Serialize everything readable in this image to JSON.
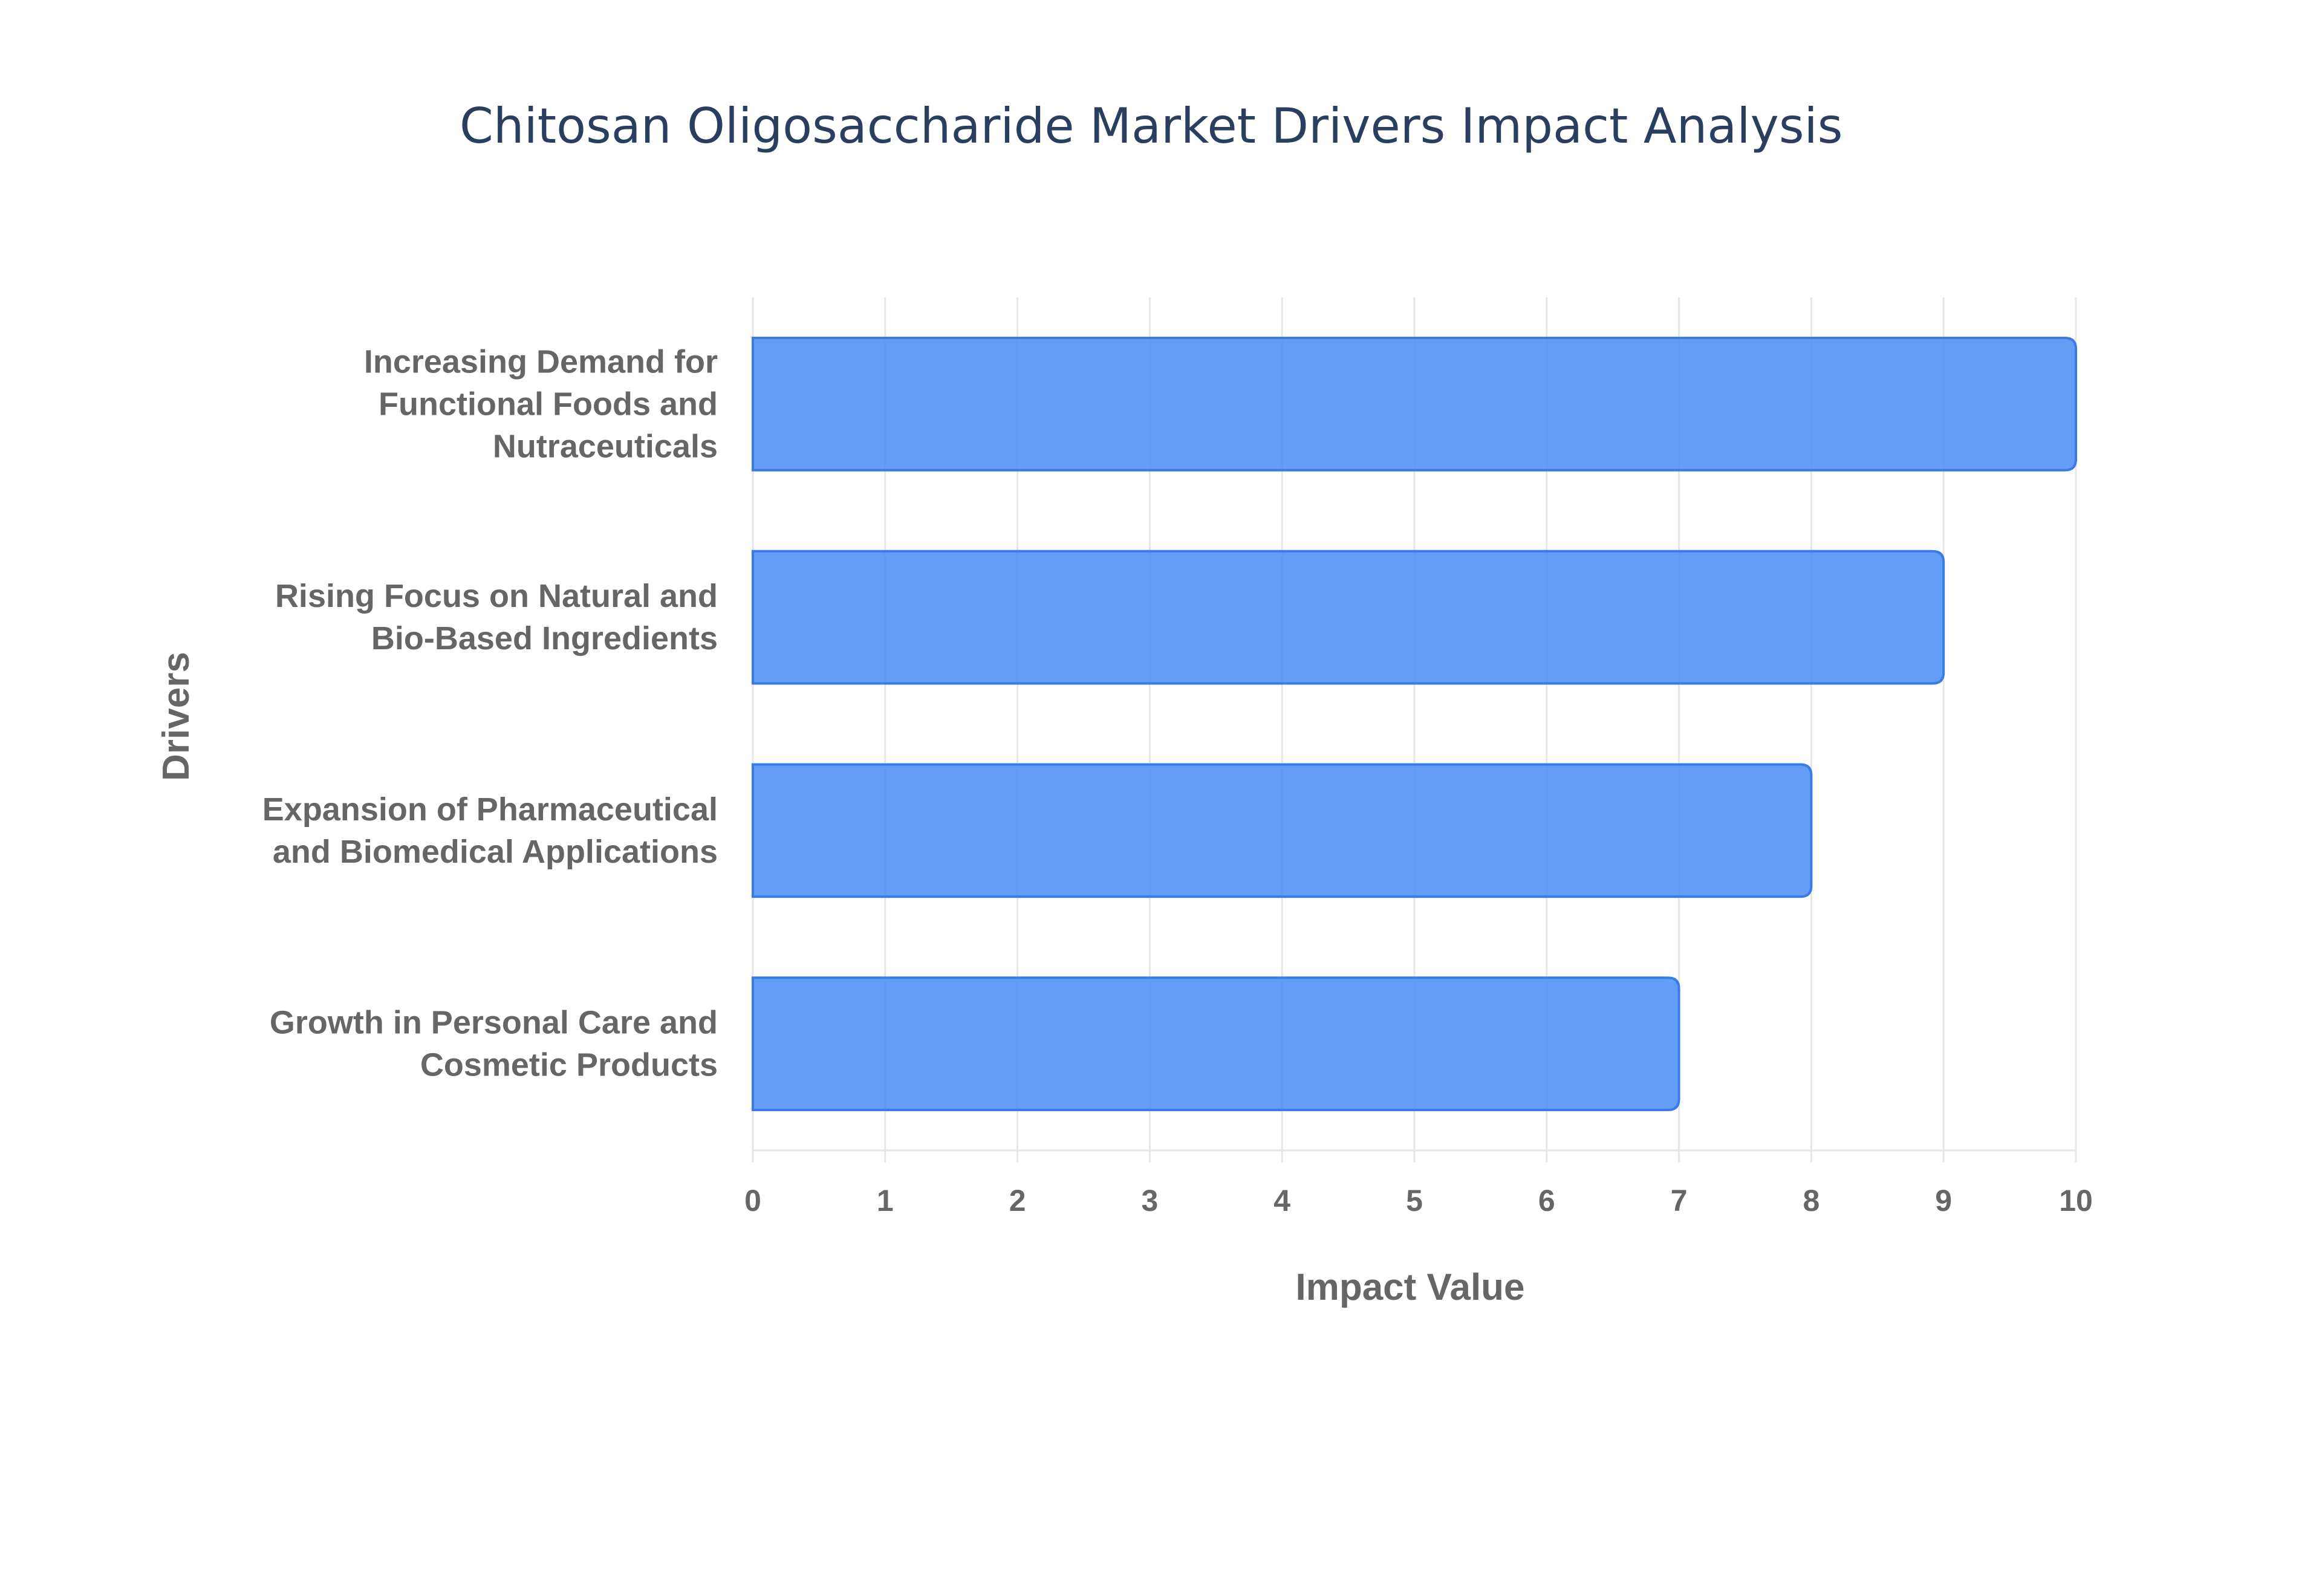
{
  "chart_data": {
    "type": "bar",
    "orientation": "horizontal",
    "title": "Chitosan Oligosaccharide Market Drivers Impact Analysis",
    "xlabel": "Impact Value",
    "ylabel": "Drivers",
    "xlim": [
      0,
      10
    ],
    "xticks": [
      0,
      1,
      2,
      3,
      4,
      5,
      6,
      7,
      8,
      9,
      10
    ],
    "grid": true,
    "legend": "none",
    "bar_color": "#4d8ff5",
    "bar_edge_color": "#3a7be6",
    "categories": [
      [
        "Increasing Demand for",
        "Functional Foods and",
        "Nutraceuticals"
      ],
      [
        "Rising Focus on Natural and",
        "Bio-Based Ingredients"
      ],
      [
        "Expansion of Pharmaceutical",
        "and Biomedical Applications"
      ],
      [
        "Growth in Personal Care and",
        "Cosmetic Products"
      ]
    ],
    "values": [
      10,
      9,
      8,
      7
    ]
  }
}
